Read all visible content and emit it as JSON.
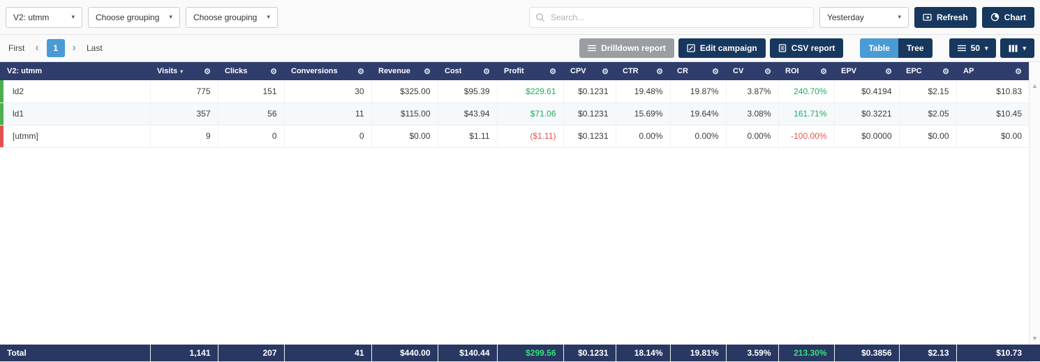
{
  "colors": {
    "header_navy": "#2e3d6c",
    "footer_navy": "#293862",
    "button_navy": "#17375e",
    "active_blue": "#4a9bd5",
    "positive_green": "#27a85f",
    "negative_red": "#e25252",
    "total_green": "#35e07a"
  },
  "icons": {
    "caret_down": "▾",
    "gear": "⚙",
    "chevron_left": "‹",
    "chevron_right": "›",
    "scroll_up": "▲",
    "scroll_down": "▼"
  },
  "toolbar": {
    "campaign_select": "V2: utmm",
    "grouping_select_1": "Choose grouping",
    "grouping_select_2": "Choose grouping",
    "search_placeholder": "Search...",
    "date_select": "Yesterday",
    "refresh_label": "Refresh",
    "chart_label": "Chart"
  },
  "pagination": {
    "first": "First",
    "page": "1",
    "last": "Last"
  },
  "actions": {
    "drilldown_label": "Drilldown report",
    "edit_campaign_label": "Edit campaign",
    "csv_label": "CSV report",
    "table_toggle": "Table",
    "tree_toggle": "Tree",
    "page_size": "50"
  },
  "table": {
    "columns": [
      {
        "label": "V2: utmm",
        "gear": false,
        "sort": false
      },
      {
        "label": "Visits",
        "gear": true,
        "sort": true
      },
      {
        "label": "Clicks",
        "gear": true,
        "sort": false
      },
      {
        "label": "Conversions",
        "gear": true,
        "sort": false
      },
      {
        "label": "Revenue",
        "gear": true,
        "sort": false
      },
      {
        "label": "Cost",
        "gear": true,
        "sort": false
      },
      {
        "label": "Profit",
        "gear": true,
        "sort": false
      },
      {
        "label": "CPV",
        "gear": true,
        "sort": false
      },
      {
        "label": "CTR",
        "gear": true,
        "sort": false
      },
      {
        "label": "CR",
        "gear": true,
        "sort": false
      },
      {
        "label": "CV",
        "gear": true,
        "sort": false
      },
      {
        "label": "ROI",
        "gear": true,
        "sort": false
      },
      {
        "label": "EPV",
        "gear": true,
        "sort": false
      },
      {
        "label": "EPC",
        "gear": true,
        "sort": false
      },
      {
        "label": "AP",
        "gear": true,
        "sort": false
      }
    ],
    "rows": [
      {
        "status": "green",
        "name": "ld2",
        "values": [
          "775",
          "151",
          "30",
          "$325.00",
          "$95.39",
          "$229.61",
          "$0.1231",
          "19.48%",
          "19.87%",
          "3.87%",
          "240.70%",
          "$0.4194",
          "$2.15",
          "$10.83"
        ]
      },
      {
        "status": "green",
        "name": "ld1",
        "values": [
          "357",
          "56",
          "11",
          "$115.00",
          "$43.94",
          "$71.06",
          "$0.1231",
          "15.69%",
          "19.64%",
          "3.08%",
          "161.71%",
          "$0.3221",
          "$2.05",
          "$10.45"
        ]
      },
      {
        "status": "red",
        "name": "[utmm]",
        "values": [
          "9",
          "0",
          "0",
          "$0.00",
          "$1.11",
          "($1.11)",
          "$0.1231",
          "0.00%",
          "0.00%",
          "0.00%",
          "-100.00%",
          "$0.0000",
          "$0.00",
          "$0.00"
        ]
      }
    ],
    "total": {
      "label": "Total",
      "values": [
        "1,141",
        "207",
        "41",
        "$440.00",
        "$140.44",
        "$299.56",
        "$0.1231",
        "18.14%",
        "19.81%",
        "3.59%",
        "213.30%",
        "$0.3856",
        "$2.13",
        "$10.73"
      ]
    }
  }
}
